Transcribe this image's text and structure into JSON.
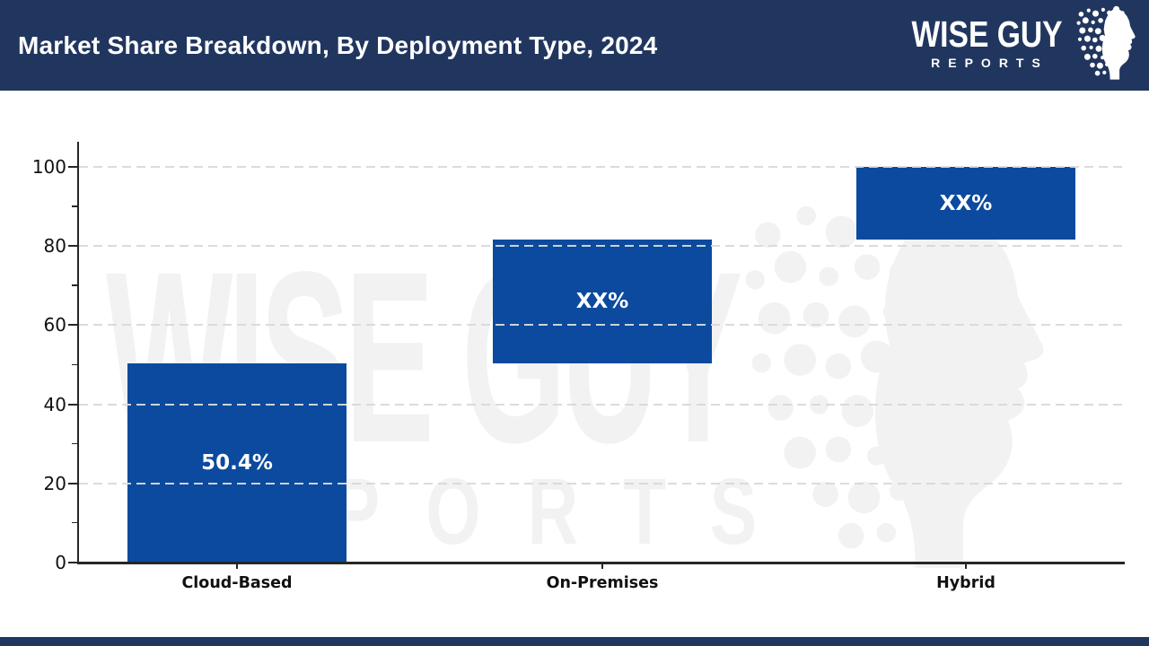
{
  "header": {
    "title": "Market Share Breakdown, By Deployment Type, 2024"
  },
  "brand": {
    "line1": "WISE GUY",
    "line2": "REPORTS",
    "icon": "head-profile-dots-icon"
  },
  "watermark": {
    "line1": "WISE GUY",
    "line2": "R E P O R T S",
    "icon": "head-profile-dots-icon"
  },
  "colors": {
    "navy": "#21365f",
    "bar_blue": "#0b4a9e",
    "watermark_gray": "#f2f2f2",
    "grid_gray": "#d9d9d9",
    "spine": "#262626",
    "label_white": "#ffffff"
  },
  "chart_data": {
    "type": "bar",
    "variant": "floating-segments",
    "title": "Market Share Breakdown, By Deployment Type, 2024",
    "xlabel": "",
    "ylabel": "",
    "ylim": [
      0,
      100
    ],
    "yticks": [
      0,
      20,
      40,
      60,
      80,
      100
    ],
    "minor_yticks": [
      10,
      30,
      50,
      70,
      90
    ],
    "grid": "dashed-horizontal",
    "legend": "none",
    "categories": [
      "Cloud-Based",
      "On-Premises",
      "Hybrid"
    ],
    "segments": [
      {
        "category": "Cloud-Based",
        "from": 0,
        "to": 50.4,
        "label": "50.4%"
      },
      {
        "category": "On-Premises",
        "from": 50.4,
        "to": 81.6,
        "label": "XX%"
      },
      {
        "category": "Hybrid",
        "from": 81.6,
        "to": 100,
        "label": "XX%"
      }
    ]
  }
}
